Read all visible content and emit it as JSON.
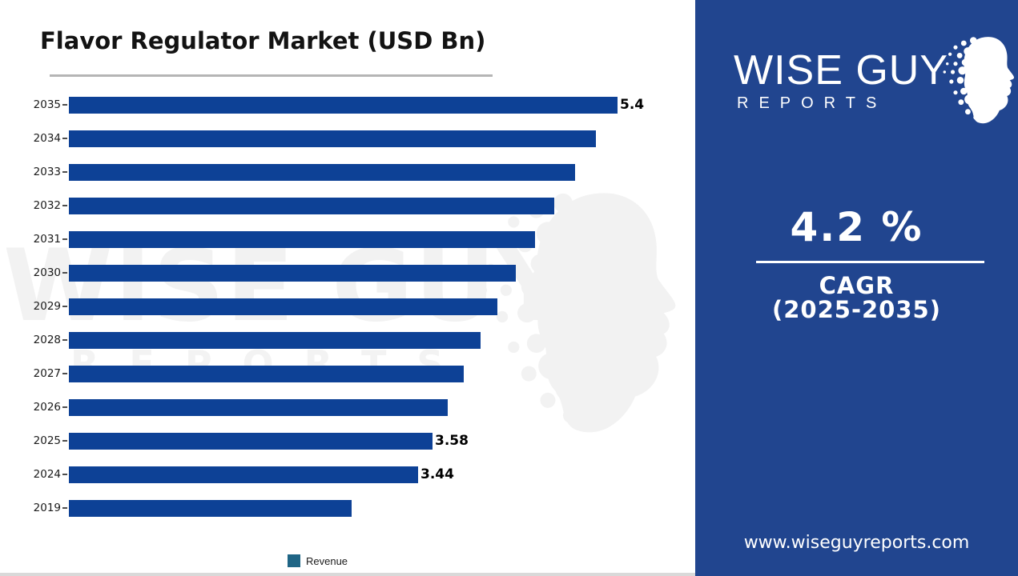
{
  "chart_data": {
    "type": "bar",
    "orientation": "horizontal",
    "title": "Flavor Regulator Market (USD Bn)",
    "xlabel": "",
    "ylabel": "",
    "categories": [
      "2035",
      "2034",
      "2033",
      "2032",
      "2031",
      "2030",
      "2029",
      "2028",
      "2027",
      "2026",
      "2025",
      "2024",
      "2019"
    ],
    "values": [
      5.4,
      5.19,
      4.98,
      4.78,
      4.59,
      4.4,
      4.22,
      4.05,
      3.89,
      3.73,
      3.58,
      3.44,
      2.78
    ],
    "labeled_values": {
      "2035": "5.4",
      "2025": "3.58",
      "2024": "3.44"
    },
    "xlim": [
      0,
      6.0
    ],
    "grid": false,
    "legend": [
      "Revenue"
    ],
    "legend_position": "bottom-center"
  },
  "chart": {
    "bar_color": "#0d4196",
    "legend_swatch_color": "#1f6585"
  },
  "watermark": {
    "line1": "WISE GUY",
    "line2": "REPORTS"
  },
  "right_panel": {
    "bg_color": "#21458f",
    "logo_line1": "WISE GUY",
    "logo_line2": "REPORTS",
    "cagr_value": "4.2 %",
    "cagr_label": "CAGR",
    "cagr_period": "(2025-2035)",
    "website": "www.wiseguyreports.com"
  },
  "icons": {
    "logo_head": "head-profile-dots-icon"
  }
}
